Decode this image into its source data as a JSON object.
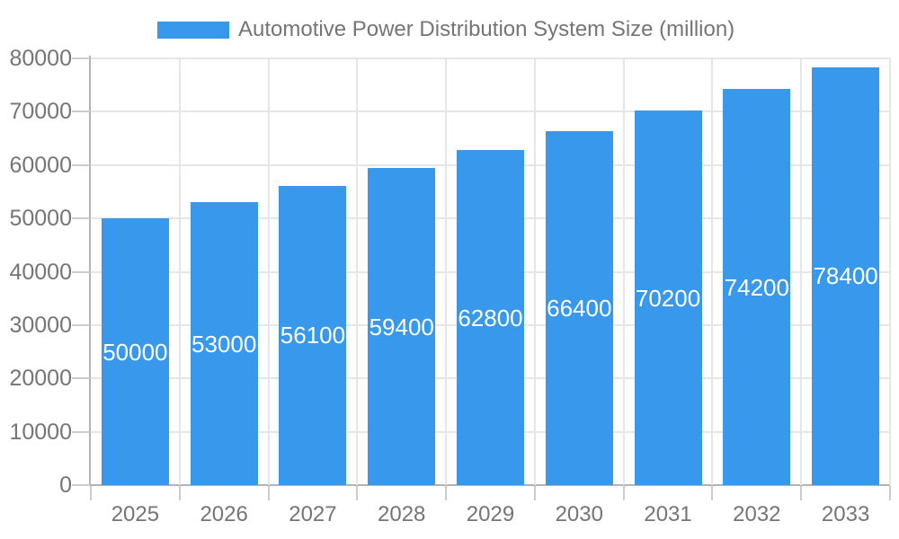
{
  "chart_data": {
    "type": "bar",
    "title": "Automotive Power Distribution System Size (million)",
    "series": [
      {
        "name": "Automotive Power Distribution System Size (million)",
        "values": [
          50000,
          53000,
          56100,
          59400,
          62800,
          66400,
          70200,
          74200,
          78400
        ]
      }
    ],
    "categories": [
      "2025",
      "2026",
      "2027",
      "2028",
      "2029",
      "2030",
      "2031",
      "2032",
      "2033"
    ],
    "xlabel": "",
    "ylabel": "",
    "ylim": [
      0,
      80000
    ],
    "ytick_step": 10000,
    "ytick_labels": [
      "0",
      "10000",
      "20000",
      "30000",
      "40000",
      "50000",
      "60000",
      "70000",
      "80000"
    ],
    "grid": "horizontal-and-vertical",
    "legend_position": "top",
    "value_labels": "inside-bar-centered"
  },
  "colors": {
    "bar": "#3899EC",
    "value_label_text": "#ffffff",
    "axis_line": "#b3b3b3",
    "tick": "#cccccc",
    "gridline": "#e6e6e6",
    "axis_text": "#757575",
    "background": "#ffffff"
  }
}
